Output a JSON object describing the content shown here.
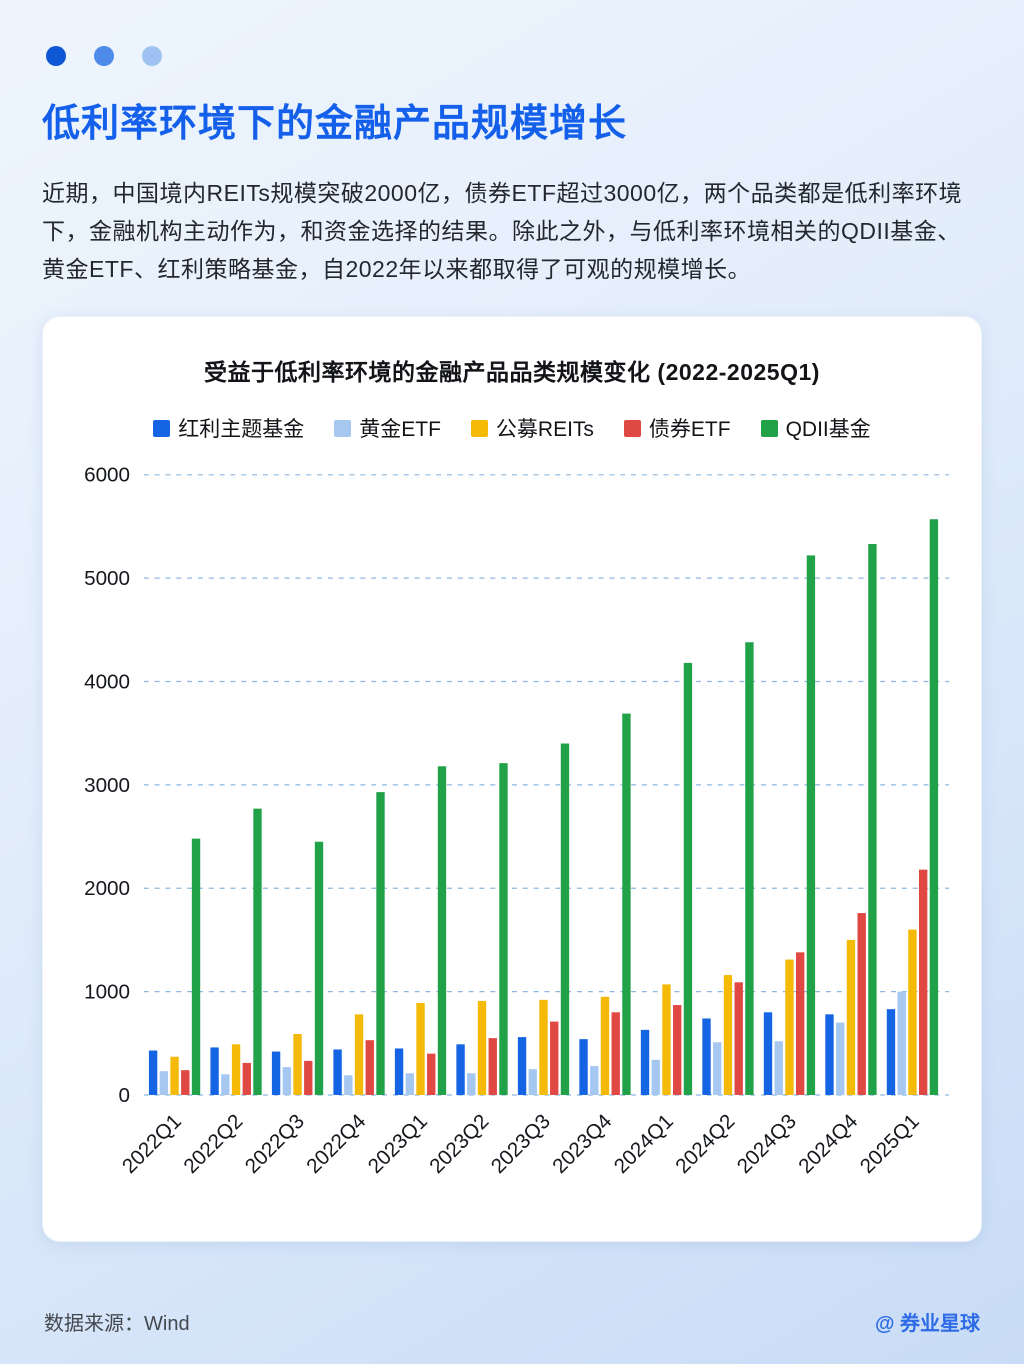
{
  "page": {
    "title": "低利率环境下的金融产品规模增长",
    "intro": "近期，中国境内REITs规模突破2000亿，债券ETF超过3000亿，两个品类都是低利率环境下，金融机构主动作为，和资金选择的结果。除此之外，与低利率环境相关的QDII基金、黄金ETF、红利策略基金，自2022年以来都取得了可观的规模增长。",
    "footer_source": "数据来源：Wind",
    "footer_brand": "@ 券业星球"
  },
  "chart_data": {
    "type": "bar",
    "title": "受益于低利率环境的金融产品品类规模变化 (2022-2025Q1)",
    "categories": [
      "2022Q1",
      "2022Q2",
      "2022Q3",
      "2022Q4",
      "2023Q1",
      "2023Q2",
      "2023Q3",
      "2023Q4",
      "2024Q1",
      "2024Q2",
      "2024Q3",
      "2024Q4",
      "2025Q1"
    ],
    "series": [
      {
        "name": "红利主题基金",
        "color": "#1464e4",
        "values": [
          430,
          460,
          420,
          440,
          450,
          490,
          560,
          540,
          630,
          740,
          800,
          780,
          830
        ]
      },
      {
        "name": "黄金ETF",
        "color": "#a6c8f0",
        "values": [
          230,
          200,
          270,
          190,
          210,
          210,
          250,
          280,
          340,
          510,
          520,
          700,
          1000
        ]
      },
      {
        "name": "公募REITs",
        "color": "#f5b908",
        "values": [
          370,
          490,
          590,
          780,
          890,
          910,
          920,
          950,
          1070,
          1160,
          1310,
          1500,
          1600
        ]
      },
      {
        "name": "债券ETF",
        "color": "#e04843",
        "values": [
          240,
          310,
          330,
          530,
          400,
          550,
          710,
          800,
          870,
          1090,
          1380,
          1760,
          2180
        ]
      },
      {
        "name": "QDII基金",
        "color": "#21a148",
        "values": [
          2480,
          2770,
          2450,
          2930,
          3180,
          3210,
          3400,
          3690,
          4180,
          4380,
          5220,
          5330,
          5570
        ]
      }
    ],
    "ylim": [
      0,
      6000
    ],
    "ytick_step": 1000,
    "grid": "dashed horizontal",
    "legend_position": "top"
  }
}
